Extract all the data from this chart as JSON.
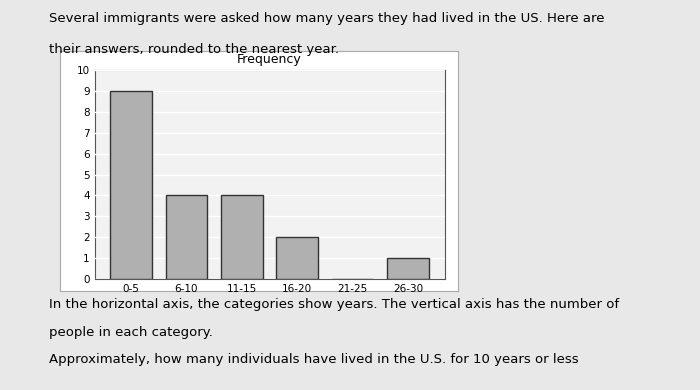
{
  "title": "Frequency",
  "categories": [
    "0-5",
    "6-10",
    "11-15",
    "16-20",
    "21-25",
    "26-30"
  ],
  "values": [
    9,
    4,
    4,
    2,
    0,
    1
  ],
  "bar_color": "#b0b0b0",
  "bar_edgecolor": "#333333",
  "ylim": [
    0,
    10
  ],
  "yticks": [
    0,
    1,
    2,
    3,
    4,
    5,
    6,
    7,
    8,
    9,
    10
  ],
  "title_fontsize": 9,
  "tick_fontsize": 7.5,
  "background_color": "#e8e8e8",
  "plot_bg_color": "#f2f2f2",
  "chart_box_color": "#ffffff",
  "header_text_line1": "Several immigrants were asked how many years they had lived in the US. Here are",
  "header_text_line2": "their answers, rounded to the nearest year.",
  "footer_text_line1": "In the horizontal axis, the categories show years. The vertical axis has the number of",
  "footer_text_line2": "people in each category.",
  "footer_text3": "Approximately, how many individuals have lived in the U.S. for 10 years or less"
}
